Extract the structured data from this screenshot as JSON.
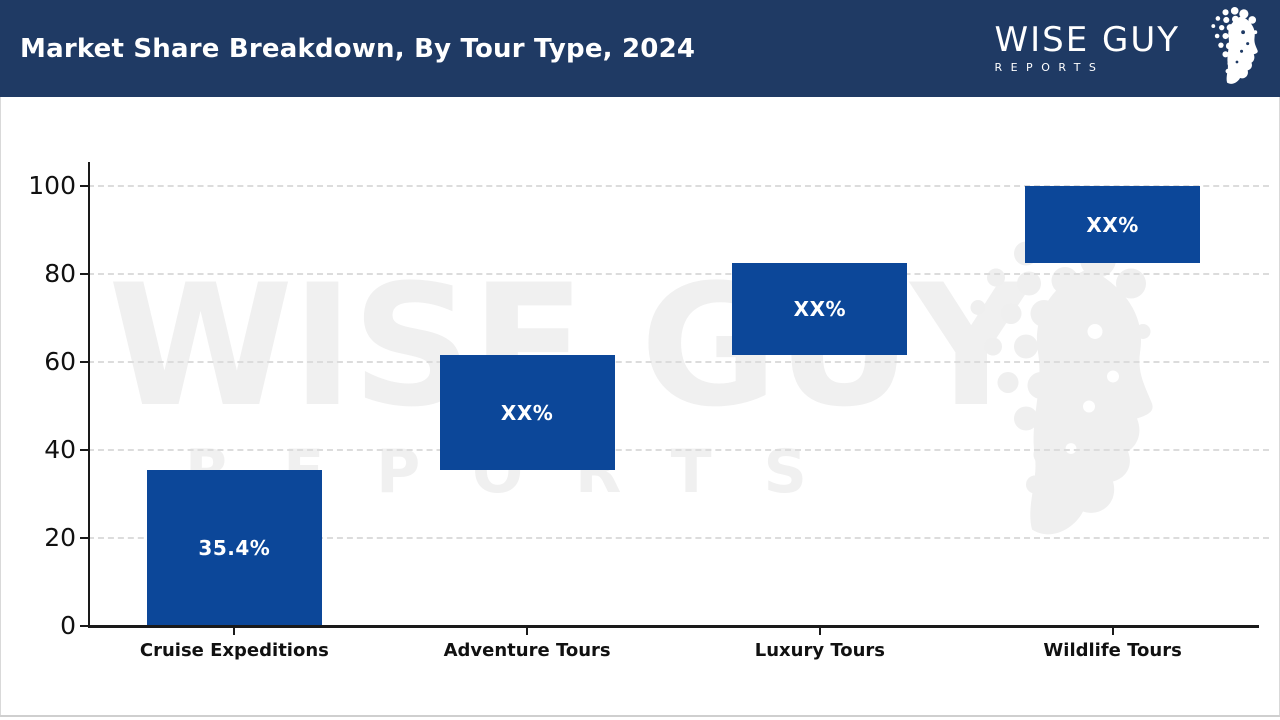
{
  "header": {
    "title": "Market Share Breakdown, By Tour Type, 2024",
    "brand": {
      "line1": "WISE GUY",
      "line2": "REPORTS"
    }
  },
  "watermark": {
    "line1": "WISE GUY",
    "line2": "REPORTS"
  },
  "colors": {
    "header_bg": "#1F3A64",
    "bar": "#0C4799",
    "axis": "#1A1A1A",
    "grid": "#DCDCDC",
    "watermark": "#F0F0F0",
    "label_on_bar": "#FFFFFF"
  },
  "chart_data": {
    "type": "bar",
    "subtype": "waterfall",
    "title": "Market Share Breakdown, By Tour Type, 2024",
    "xlabel": "",
    "ylabel": "",
    "categories": [
      "Cruise Expeditions",
      "Adventure Tours",
      "Luxury Tours",
      "Wildlife Tours"
    ],
    "bars": [
      {
        "category": "Cruise Expeditions",
        "start": 0,
        "end": 35.4,
        "label": "35.4%"
      },
      {
        "category": "Adventure Tours",
        "start": 35.4,
        "end": 61.5,
        "label": "XX%"
      },
      {
        "category": "Luxury Tours",
        "start": 61.5,
        "end": 82.5,
        "label": "XX%"
      },
      {
        "category": "Wildlife Tours",
        "start": 82.5,
        "end": 100,
        "label": "XX%"
      }
    ],
    "ylim": [
      0,
      100
    ],
    "yticks": [
      0,
      20,
      40,
      60,
      80,
      100
    ],
    "grid": "dashed-horizontal",
    "legend": "none",
    "bar_color": "#0C4799"
  }
}
